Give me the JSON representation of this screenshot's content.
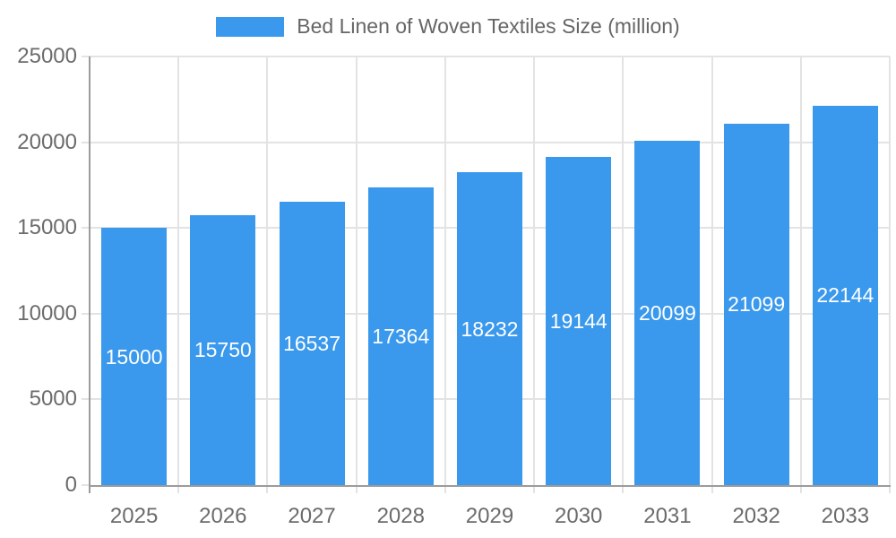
{
  "chart_data": {
    "type": "bar",
    "title": "Bed Linen of Woven Textiles Size (million)",
    "legend_position": "top",
    "legend_entries": [
      "Bed Linen of Woven Textiles Size (million)"
    ],
    "categories": [
      "2025",
      "2026",
      "2027",
      "2028",
      "2029",
      "2030",
      "2031",
      "2032",
      "2033"
    ],
    "series": [
      {
        "name": "Bed Linen of Woven Textiles Size (million)",
        "values": [
          15000,
          15750,
          16537,
          17364,
          18232,
          19144,
          20099,
          21099,
          22144
        ]
      }
    ],
    "value_labels_visible": true,
    "xlabel": "",
    "ylabel": "",
    "ylim": [
      0,
      25000
    ],
    "y_ticks": [
      "0",
      "5000",
      "10000",
      "15000",
      "20000",
      "25000"
    ],
    "y_tick_values": [
      0,
      5000,
      10000,
      15000,
      20000,
      25000
    ],
    "grid": true,
    "colors": {
      "bar": "#3A99EC",
      "grid_line": "#E3E3E3",
      "axis_line": "#9B9B9B",
      "tick_label": "#6B6B6B",
      "legend_label": "#666666",
      "value_label": "#FFFFFF",
      "background": "#FFFFFF"
    }
  }
}
